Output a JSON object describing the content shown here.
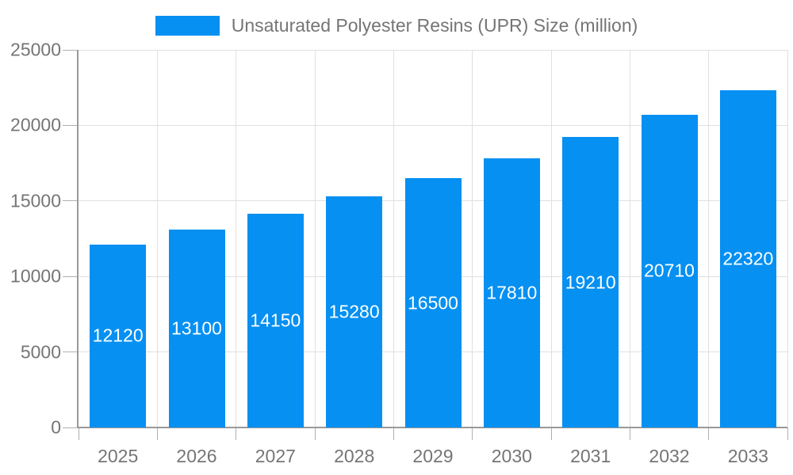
{
  "chart_data": {
    "type": "bar",
    "title": "",
    "xlabel": "",
    "ylabel": "",
    "legend_position": "top",
    "legend_entries": [
      "Unsaturated Polyester Resins (UPR) Size (million)"
    ],
    "categories": [
      "2025",
      "2026",
      "2027",
      "2028",
      "2029",
      "2030",
      "2031",
      "2032",
      "2033"
    ],
    "series": [
      {
        "name": "Unsaturated Polyester Resins (UPR) Size (million)",
        "values": [
          12120,
          13100,
          14150,
          15280,
          16500,
          17810,
          19210,
          20710,
          22320
        ]
      }
    ],
    "bar_value_labels": [
      "12120",
      "13100",
      "14150",
      "15280",
      "16500",
      "17810",
      "19210",
      "20710",
      "22320"
    ],
    "ylim": [
      0,
      25000
    ],
    "yticks": [
      0,
      5000,
      10000,
      15000,
      20000,
      25000
    ],
    "ytick_labels": [
      "0",
      "5000",
      "10000",
      "15000",
      "20000",
      "25000"
    ],
    "grid": true,
    "colors": {
      "bar": "#0590f2",
      "axis": "#999999",
      "grid": "#e0e0e0",
      "tick": "#b0b0b0",
      "text": "#757575",
      "bar_label": "#ffffff",
      "background": "#ffffff"
    }
  }
}
